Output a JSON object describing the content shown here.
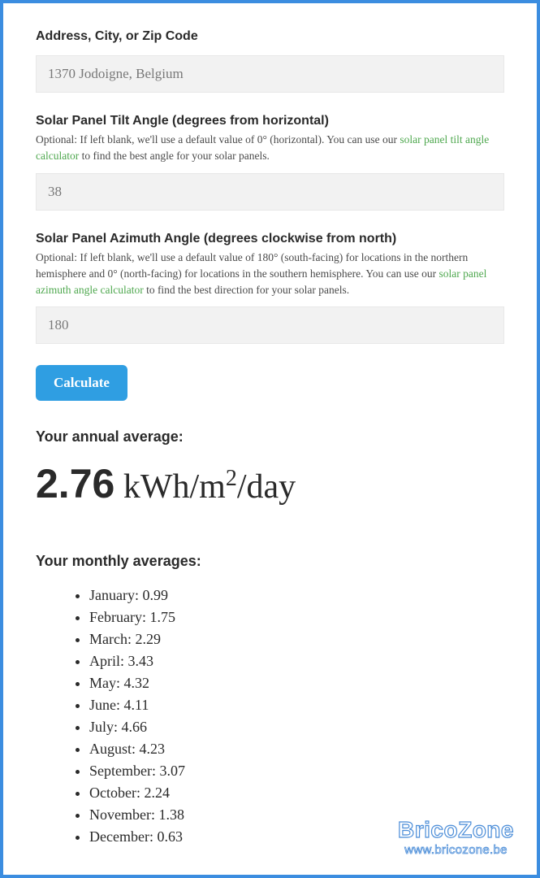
{
  "address": {
    "label": "Address, City, or Zip Code",
    "value": "1370 Jodoigne, Belgium"
  },
  "tilt": {
    "label": "Solar Panel Tilt Angle (degrees from horizontal)",
    "helper_pre": "Optional: If left blank, we'll use a default value of 0° (horizontal). You can use our ",
    "helper_link": "solar panel tilt angle calculator",
    "helper_post": " to find the best angle for your solar panels.",
    "value": "38"
  },
  "azimuth": {
    "label": "Solar Panel Azimuth Angle (degrees clockwise from north)",
    "helper_pre": "Optional: If left blank, we'll use a default value of 180° (south-facing) for locations in the northern hemisphere and 0° (north-facing) for locations in the southern hemisphere. You can use our ",
    "helper_link": "solar panel azimuth angle calculator",
    "helper_post": " to find the best direction for your solar panels.",
    "value": "180"
  },
  "calc_button": "Calculate",
  "annual": {
    "heading": "Your annual average:",
    "value": "2.76",
    "unit_pre": " kWh/m",
    "unit_sup": "2",
    "unit_post": "/day"
  },
  "monthly": {
    "heading": "Your monthly averages:",
    "items": [
      "January: 0.99",
      "February: 1.75",
      "March: 2.29",
      "April: 3.43",
      "May: 4.32",
      "June: 4.11",
      "July: 4.66",
      "August: 4.23",
      "September: 3.07",
      "October: 2.24",
      "November: 1.38",
      "December: 0.63"
    ]
  },
  "watermark": {
    "title": "BricoZone",
    "url": "www.bricozone.be"
  },
  "colors": {
    "border": "#3b8de0",
    "link": "#4fa84f",
    "button": "#2f9ee2",
    "input_bg": "#f2f2f2",
    "text": "#2a2a2a"
  }
}
